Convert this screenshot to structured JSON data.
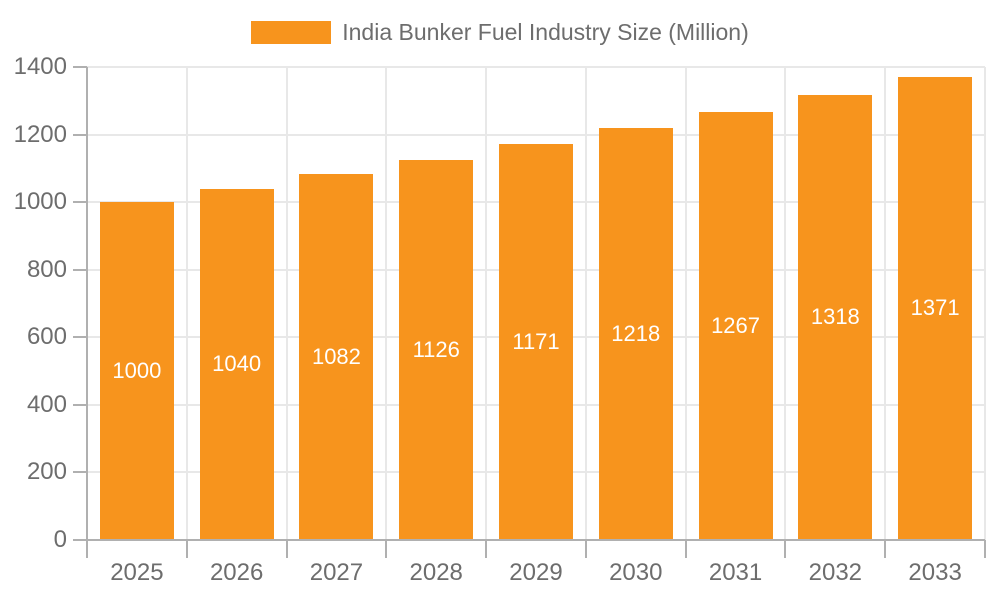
{
  "legend": {
    "label": "India Bunker Fuel Industry Size (Million)",
    "swatch_color": "#F7941D"
  },
  "chart_data": {
    "type": "bar",
    "title": "India Bunker Fuel Industry Size (Million)",
    "categories": [
      "2025",
      "2026",
      "2027",
      "2028",
      "2029",
      "2030",
      "2031",
      "2032",
      "2033"
    ],
    "values": [
      1000,
      1040,
      1082,
      1126,
      1171,
      1218,
      1267,
      1318,
      1371
    ],
    "xlabel": "",
    "ylabel": "",
    "ylim": [
      0,
      1400
    ],
    "yticks": [
      0,
      200,
      400,
      600,
      800,
      1000,
      1200,
      1400
    ],
    "grid": true,
    "legend_position": "top-center",
    "bar_color": "#F7941D",
    "value_label_color": "#FFFFFF",
    "axis_text_color": "#6D6D6D",
    "grid_color": "#E8E8E8",
    "axis_line_color": "#B0B0B0"
  }
}
